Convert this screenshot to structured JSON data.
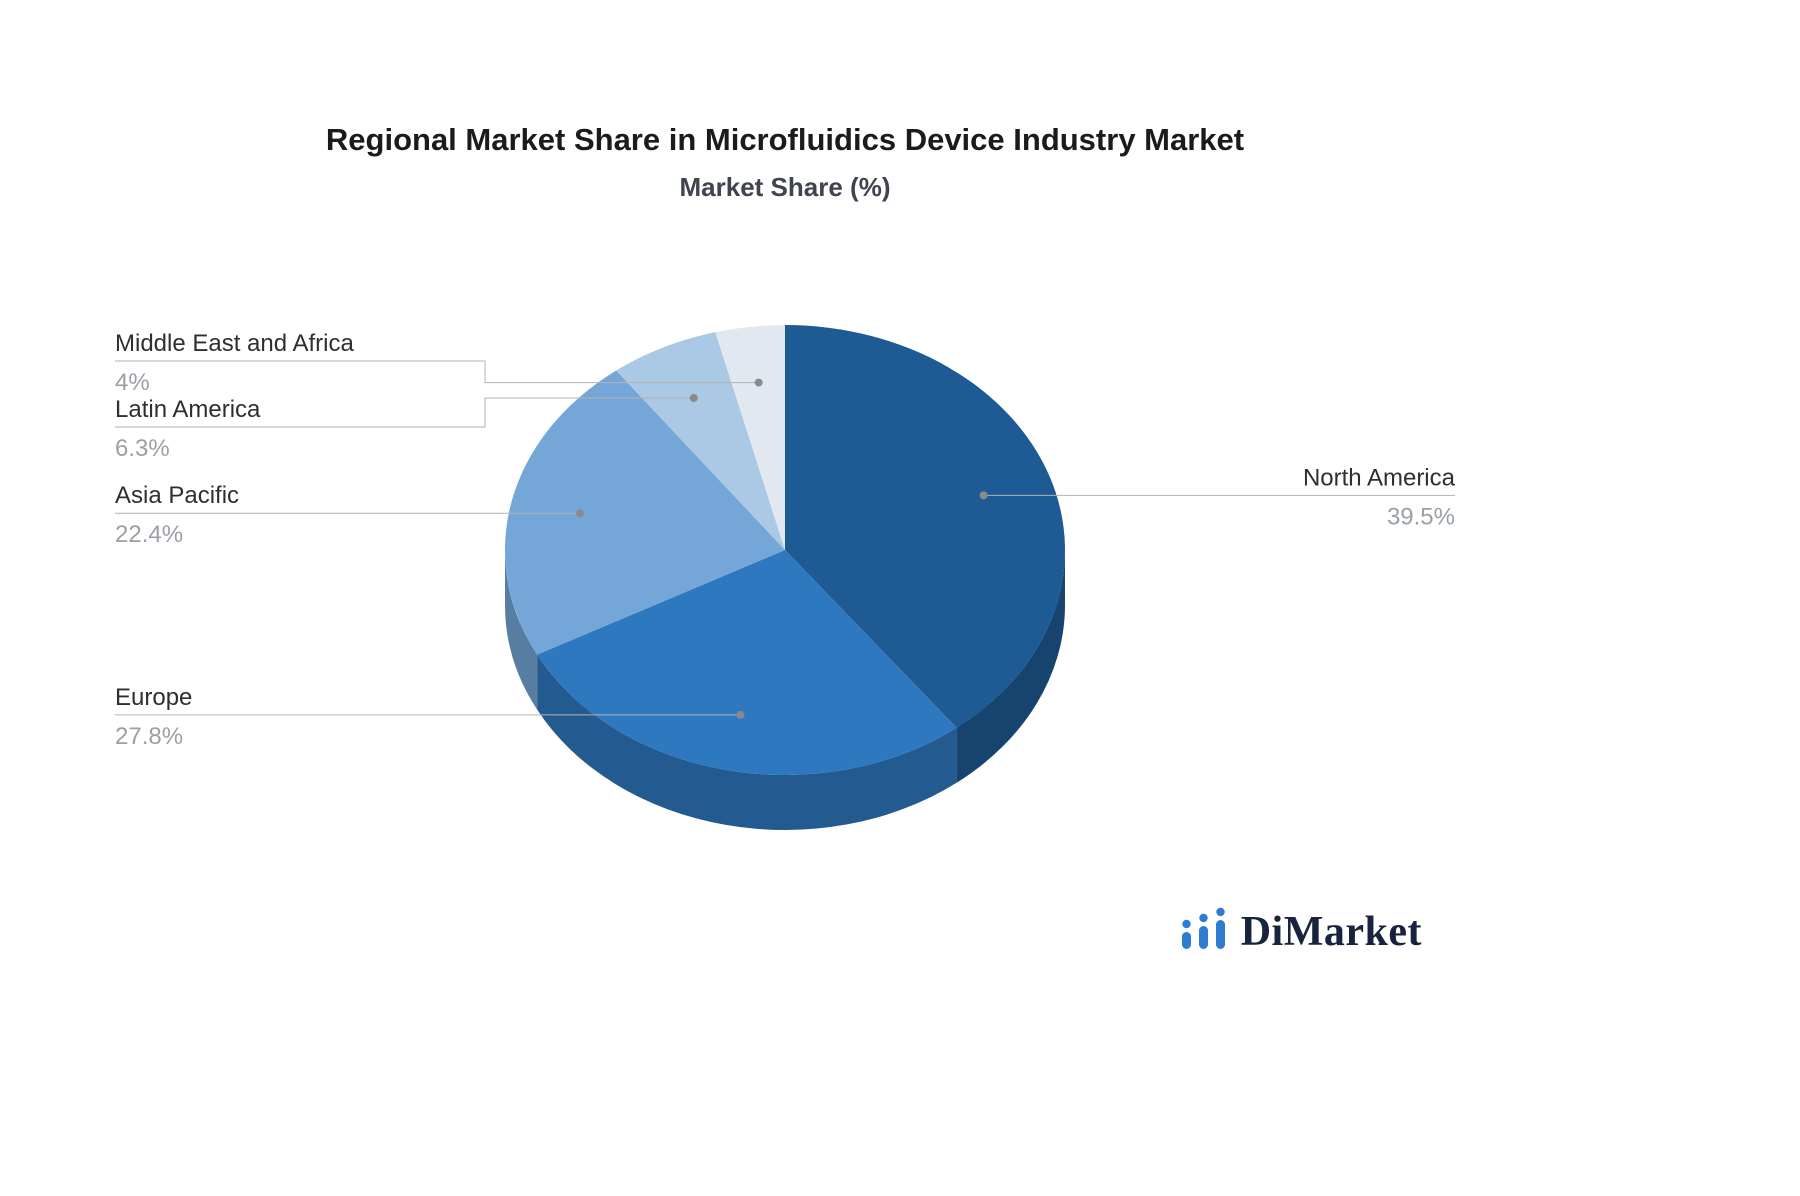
{
  "page": {
    "background": "#ffffff"
  },
  "chart_data": {
    "type": "pie",
    "title": "Regional Market Share in Microfluidics Device Industry Market",
    "subtitle": "Market Share (%)",
    "unit": "%",
    "direction": "clockwise",
    "start_angle_deg": 0,
    "effect": "3d",
    "legend_position": "none",
    "slices": [
      {
        "name": "North America",
        "value": 39.5,
        "display": "39.5%",
        "color": "#1e5b94"
      },
      {
        "name": "Europe",
        "value": 27.8,
        "display": "27.8%",
        "color": "#2e78c0"
      },
      {
        "name": "Asia Pacific",
        "value": 22.4,
        "display": "22.4%",
        "color": "#74a6d8"
      },
      {
        "name": "Latin America",
        "value": 6.3,
        "display": "6.3%",
        "color": "#abc8e4"
      },
      {
        "name": "Middle East and Africa",
        "value": 4,
        "display": "4%",
        "color": "#e2e8f0"
      }
    ]
  },
  "logo": {
    "text": "DiMarket",
    "icon": "bar-chart-icon",
    "icon_color": "#2e7bd0",
    "text_color": "#18243d"
  },
  "colors": {
    "title": "#1b1b1b",
    "subtitle": "#3f4450",
    "label_text": "#2f2f2f",
    "value_text": "#9aa0a6",
    "leader_line": "#b3b3b3",
    "leader_dot": "#8a8a8a"
  }
}
